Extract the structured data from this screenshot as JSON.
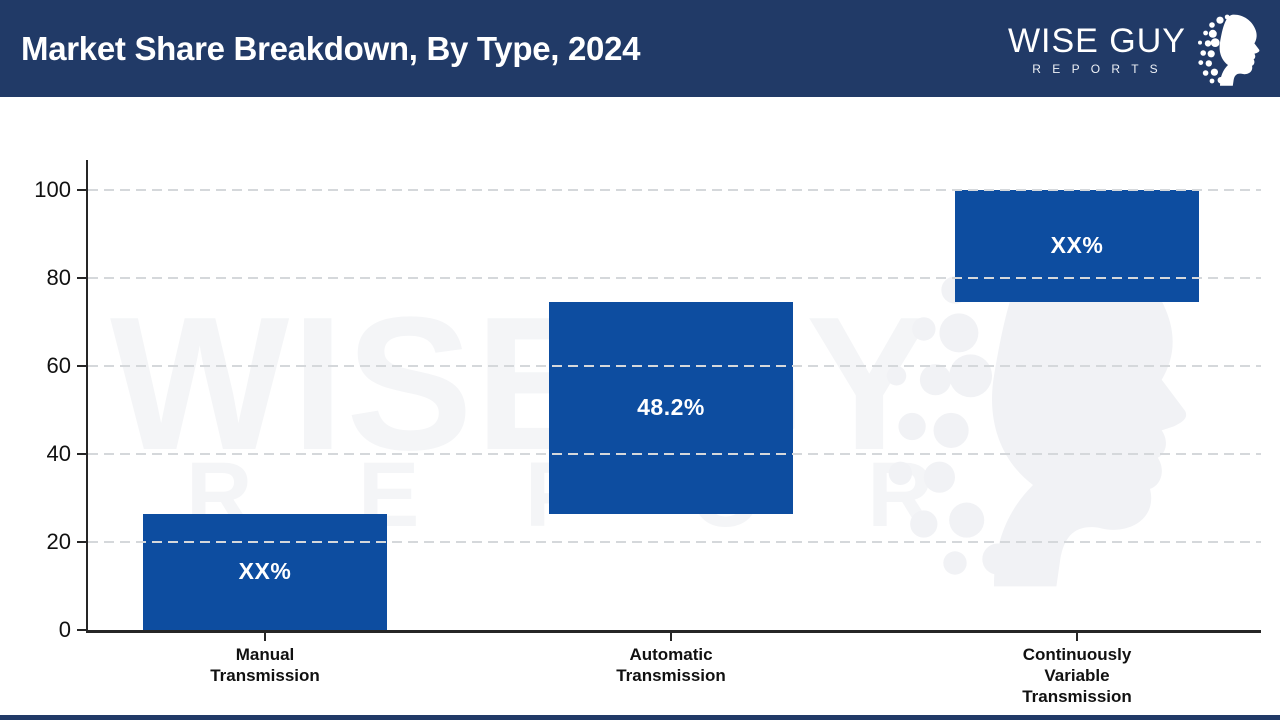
{
  "header": {
    "title": "Market Share Breakdown, By Type, 2024",
    "logo": {
      "line1": "WISE GUY",
      "line2": "R E P O R T S"
    }
  },
  "watermark": {
    "line1": "WISE G",
    "line1b": "Y",
    "line2": "R E P O R T S"
  },
  "chart_data": {
    "type": "bar",
    "subtype": "waterfall-style floating segment bars",
    "title": "Market Share Breakdown, By Type, 2024",
    "categories": [
      "Manual Transmission",
      "Automatic Transmission",
      "Continuously Variable Transmission"
    ],
    "category_lines": [
      [
        "Manual",
        "Transmission"
      ],
      [
        "Automatic",
        "Transmission"
      ],
      [
        "Continuously",
        "Variable",
        "Transmission"
      ]
    ],
    "segments": [
      {
        "category": "Manual Transmission",
        "start": 0,
        "end": 26.4,
        "label": "XX%"
      },
      {
        "category": "Automatic Transmission",
        "start": 26.4,
        "end": 74.6,
        "label": "48.2%"
      },
      {
        "category": "Continuously Variable Transmission",
        "start": 74.6,
        "end": 100,
        "label": "XX%"
      }
    ],
    "ylim": [
      0,
      100
    ],
    "yticks": [
      0,
      20,
      40,
      60,
      80,
      100
    ],
    "xlabel": "",
    "ylabel": "",
    "grid": "horizontal dashed gridlines drawn over bars",
    "legend": false,
    "bar_color": "#0d4da0"
  },
  "colors": {
    "header_bg": "#213a67",
    "bar_fill": "#0d4da0",
    "axis": "#262626",
    "gridline": "#d5d8db",
    "bar_label_text": "#ffffff",
    "tick_label_text": "#111111",
    "watermark": "#f4f5f7"
  }
}
